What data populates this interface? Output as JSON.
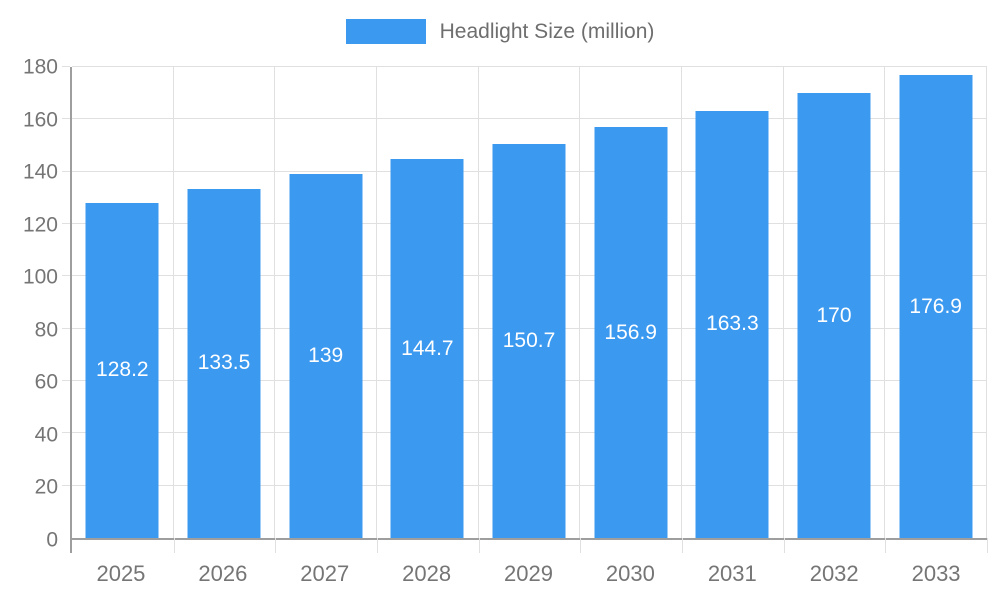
{
  "chart_data": {
    "type": "bar",
    "title": "",
    "legend": {
      "label": "Headlight Size (million)",
      "position": "top"
    },
    "categories": [
      "2025",
      "2026",
      "2027",
      "2028",
      "2029",
      "2030",
      "2031",
      "2032",
      "2033"
    ],
    "series": [
      {
        "name": "Headlight Size (million)",
        "values": [
          128.2,
          133.5,
          139,
          144.7,
          150.7,
          156.9,
          163.3,
          170,
          176.9
        ],
        "value_labels": [
          "128.2",
          "133.5",
          "139",
          "144.7",
          "150.7",
          "156.9",
          "163.3",
          "170",
          "176.9"
        ]
      }
    ],
    "xlabel": "",
    "ylabel": "",
    "ylim": [
      0,
      180
    ],
    "ytick_step": 20,
    "ytick_labels": [
      "0",
      "20",
      "40",
      "60",
      "80",
      "100",
      "120",
      "140",
      "160",
      "180"
    ],
    "grid": true,
    "colors": {
      "bar": "#3b99f0",
      "grid": "#e0e0e0",
      "axis": "#9e9e9e",
      "tick_text": "#757575",
      "legend_text": "#6e6e6e",
      "bar_label": "#ffffff",
      "background": "#ffffff"
    }
  }
}
